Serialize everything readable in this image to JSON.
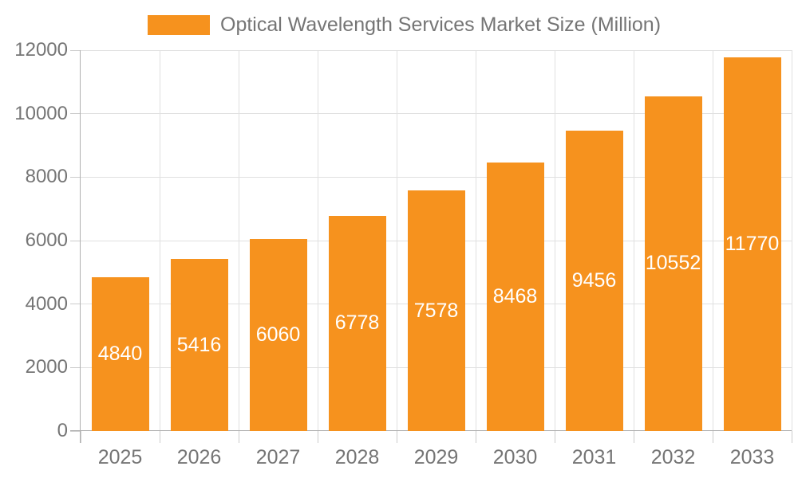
{
  "chart_data": {
    "type": "bar",
    "title": "Optical Wavelength Services Market Size (Million)",
    "categories": [
      "2025",
      "2026",
      "2027",
      "2028",
      "2029",
      "2030",
      "2031",
      "2032",
      "2033"
    ],
    "series": [
      {
        "name": "Optical Wavelength Services Market Size (Million)",
        "values": [
          4840,
          5416,
          6060,
          6778,
          7578,
          8468,
          9456,
          10552,
          11770
        ]
      }
    ],
    "ylim": [
      0,
      12000
    ],
    "yticks": [
      0,
      2000,
      4000,
      6000,
      8000,
      10000,
      12000
    ],
    "grid": true,
    "legend_position": "top",
    "bar_labels_shown": true,
    "colors": {
      "bar": "#F6921E",
      "bar_label": "#FFFFFF",
      "axis_text": "#757575",
      "grid_line": "#E0E0E0",
      "axis_line": "#B0B0B0",
      "tick_line": "#CCCCCC",
      "background": "#FFFFFF"
    }
  },
  "legend": {
    "label": "Optical Wavelength Services Market Size (Million)"
  }
}
